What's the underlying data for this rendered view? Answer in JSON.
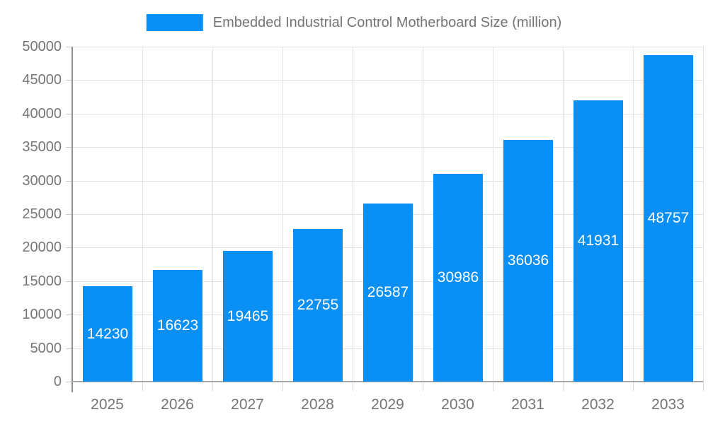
{
  "chart_data": {
    "type": "bar",
    "series_name": "Embedded Industrial Control Motherboard Size (million)",
    "legend_position": "top",
    "categories": [
      "2025",
      "2026",
      "2027",
      "2028",
      "2029",
      "2030",
      "2031",
      "2032",
      "2033"
    ],
    "values": [
      14230,
      16623,
      19465,
      22755,
      26587,
      30986,
      36036,
      41931,
      48757
    ],
    "ylim": [
      0,
      50000
    ],
    "yticks": [
      0,
      5000,
      10000,
      15000,
      20000,
      25000,
      30000,
      35000,
      40000,
      45000,
      50000
    ],
    "grid": true,
    "colors": {
      "bar": "#0a8ff5",
      "value_label": "#ffffff",
      "axis_text": "#757575",
      "gridline": "#e2e2e2",
      "y_axis_line": "#8f8f8f",
      "x_axis_line": "#a6a6a6",
      "tick": "#c9c9c9"
    }
  }
}
